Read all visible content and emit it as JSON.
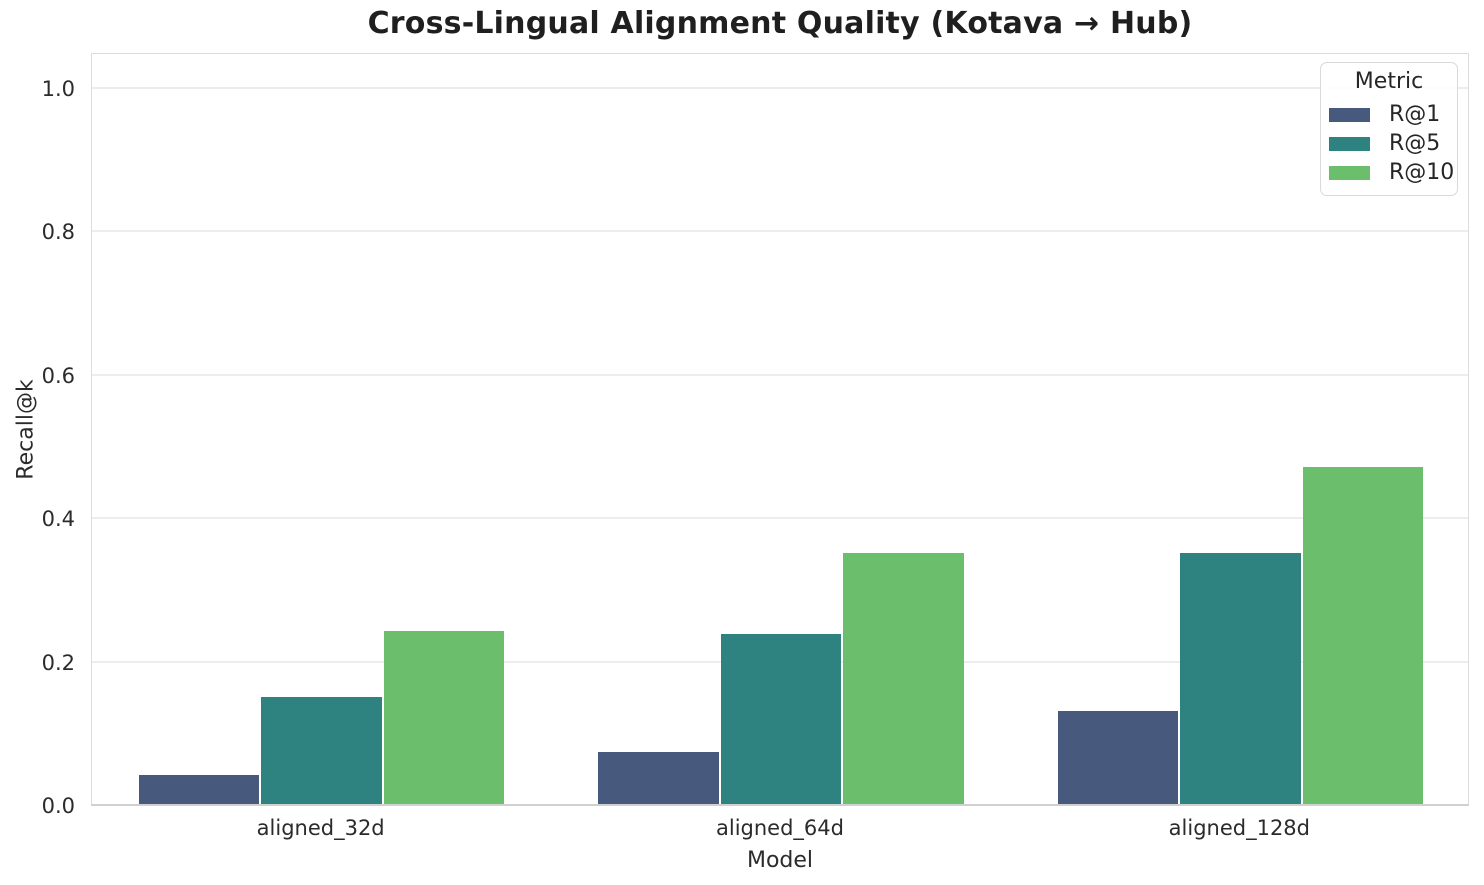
{
  "chart_data": {
    "type": "bar",
    "title": "Cross-Lingual Alignment Quality (Kotava → Hub)",
    "xlabel": "Model",
    "ylabel": "Recall@k",
    "categories": [
      "aligned_32d",
      "aligned_64d",
      "aligned_128d"
    ],
    "series": [
      {
        "name": "R@1",
        "color": "#475a7d",
        "values": [
          0.042,
          0.074,
          0.131
        ]
      },
      {
        "name": "R@5",
        "color": "#2e827f",
        "values": [
          0.15,
          0.238,
          0.351
        ]
      },
      {
        "name": "R@10",
        "color": "#6abe6c",
        "values": [
          0.242,
          0.351,
          0.471
        ]
      }
    ],
    "ylim": [
      0,
      1.05
    ],
    "yticks": [
      0.0,
      0.2,
      0.4,
      0.6,
      0.8,
      1.0
    ],
    "grid": true,
    "legend": {
      "title": "Metric",
      "position": "upper right"
    }
  },
  "style_colors": {
    "grid": "#ededed",
    "spine": "#dcdcdc",
    "baseline": "#d0d0d0",
    "text": "#2b2b2b",
    "title_text": "#1f1f1f",
    "background": "#ffffff"
  }
}
